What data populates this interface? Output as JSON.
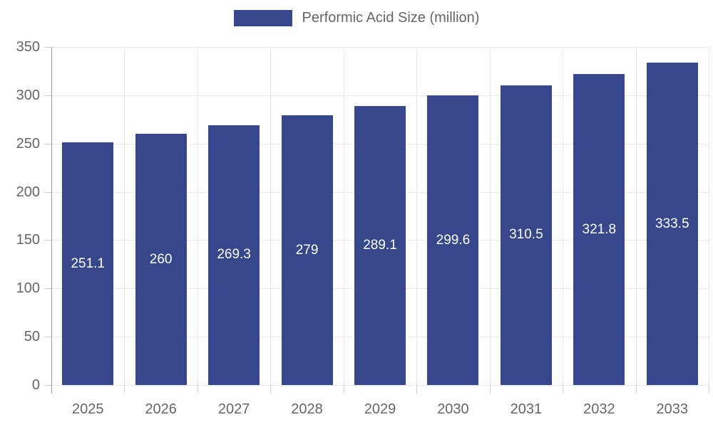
{
  "legend": {
    "label": "Performic Acid Size (million)"
  },
  "chart_data": {
    "type": "bar",
    "title": "",
    "xlabel": "",
    "ylabel": "",
    "categories": [
      "2025",
      "2026",
      "2027",
      "2028",
      "2029",
      "2030",
      "2031",
      "2032",
      "2033"
    ],
    "series": [
      {
        "name": "Performic Acid Size (million)",
        "values": [
          251.1,
          260,
          269.3,
          279,
          289.1,
          299.6,
          310.5,
          321.8,
          333.5
        ]
      }
    ],
    "value_labels": [
      "251.1",
      "260",
      "269.3",
      "279",
      "289.1",
      "299.6",
      "310.5",
      "321.8",
      "333.5"
    ],
    "ylim": [
      0,
      350
    ],
    "yticks": [
      0,
      50,
      100,
      150,
      200,
      250,
      300,
      350
    ],
    "grid": true,
    "legend_position": "top-center",
    "colors": {
      "bar": "#36478b",
      "value_label": "#ffffff",
      "axis_text": "#666666",
      "grid_line": "#e6e6e6",
      "axis_line": "#999999",
      "tick_mark": "#cccccc",
      "background": "#ffffff"
    }
  }
}
